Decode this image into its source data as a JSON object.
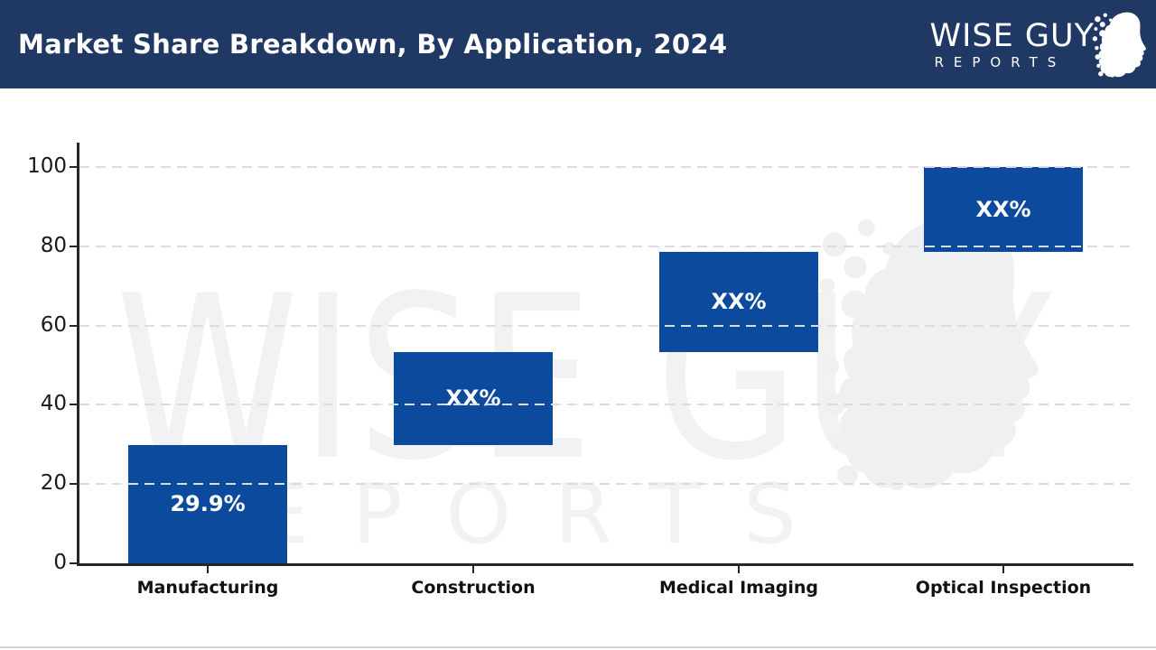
{
  "header": {
    "title": "Market Share Breakdown, By Application, 2024",
    "bg_color": "#1f3864",
    "logo": {
      "line1": "WISE GUY",
      "line2": "REPORTS"
    }
  },
  "watermark": {
    "line1": "WISE GUY",
    "line2": "REPORTS"
  },
  "chart_data": {
    "type": "bar",
    "subtype": "floating-waterfall",
    "title": "Market Share Breakdown, By Application, 2024",
    "categories": [
      "Manufacturing",
      "Construction",
      "Medical Imaging",
      "Optical Inspection"
    ],
    "segments": [
      {
        "category": "Manufacturing",
        "start": 0,
        "end": 29.9,
        "value": 29.9,
        "label": "29.9%"
      },
      {
        "category": "Construction",
        "start": 29.9,
        "end": 53.4,
        "value": 23.5,
        "label": "XX%"
      },
      {
        "category": "Medical Imaging",
        "start": 53.4,
        "end": 78.6,
        "value": 25.2,
        "label": "XX%"
      },
      {
        "category": "Optical Inspection",
        "start": 78.6,
        "end": 100,
        "value": 21.4,
        "label": "XX%"
      }
    ],
    "yticks": [
      0,
      20,
      40,
      60,
      80,
      100
    ],
    "ylim": [
      0,
      100
    ],
    "xlabel": "",
    "ylabel": "",
    "grid": true,
    "grid_style": "dashed",
    "legend": "none",
    "bar_color": "#0c4a9e",
    "bar_label_color": "#ffffff",
    "axis_color": "#262626"
  }
}
